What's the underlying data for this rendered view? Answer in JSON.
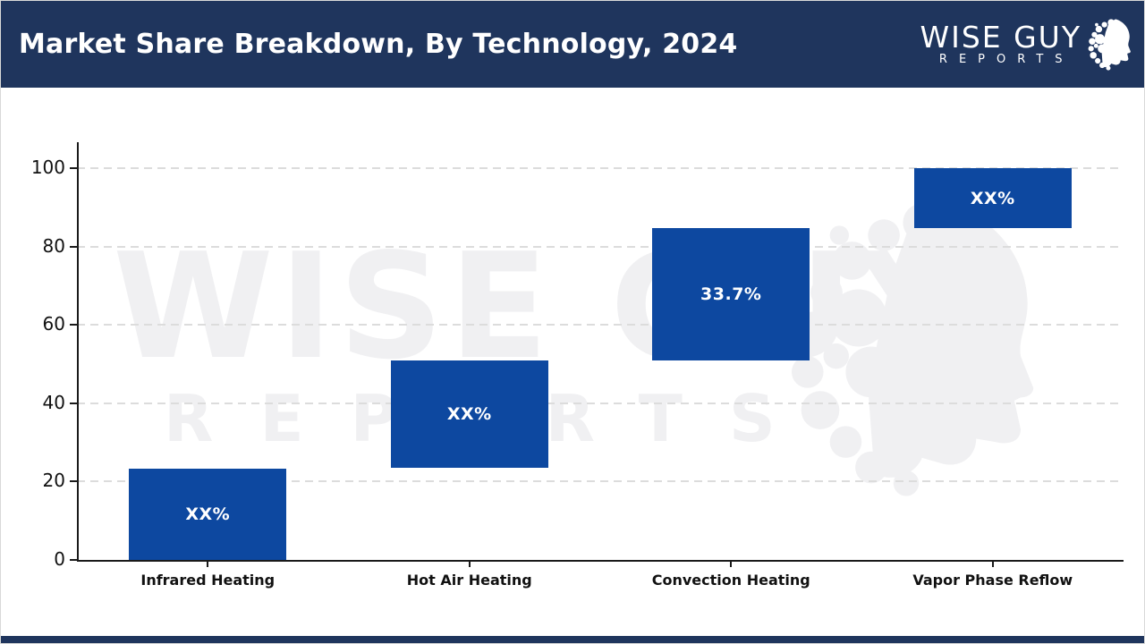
{
  "header": {
    "title": "Market Share Breakdown, By Technology, 2024",
    "background": "#1f355d",
    "logo": {
      "line1": "WISE GUY",
      "line2": "REPORTS"
    }
  },
  "watermark": {
    "line1": "WISE GUY",
    "line2": "REPORTS",
    "color": "#f0f0f2"
  },
  "chart_data": {
    "type": "bar",
    "subtype": "floating-waterfall-share",
    "title": "Market Share Breakdown, By Technology, 2024",
    "xlabel": "",
    "ylabel": "",
    "categories": [
      "Infrared Heating",
      "Hot Air Heating",
      "Convection Heating",
      "Vapor Phase Reflow"
    ],
    "series": [
      {
        "name": "Market Share",
        "segments": [
          {
            "start": 0,
            "end": 23.4,
            "label": "XX%"
          },
          {
            "start": 23.4,
            "end": 50.9,
            "label": "XX%"
          },
          {
            "start": 50.9,
            "end": 84.6,
            "label": "33.7%"
          },
          {
            "start": 84.6,
            "end": 100,
            "label": "XX%"
          }
        ]
      }
    ],
    "data_labels": [
      "XX%",
      "XX%",
      "33.7%",
      "XX%"
    ],
    "ylim": [
      0,
      100
    ],
    "yticks": [
      0,
      20,
      40,
      60,
      80,
      100
    ],
    "grid": "dashed-horizontal",
    "legend": "none",
    "bar_color": "#0d48a0",
    "label_color": "#ffffff",
    "axis_color": "#1a1a1a"
  },
  "footer": {
    "bar_color": "#1f355d"
  }
}
